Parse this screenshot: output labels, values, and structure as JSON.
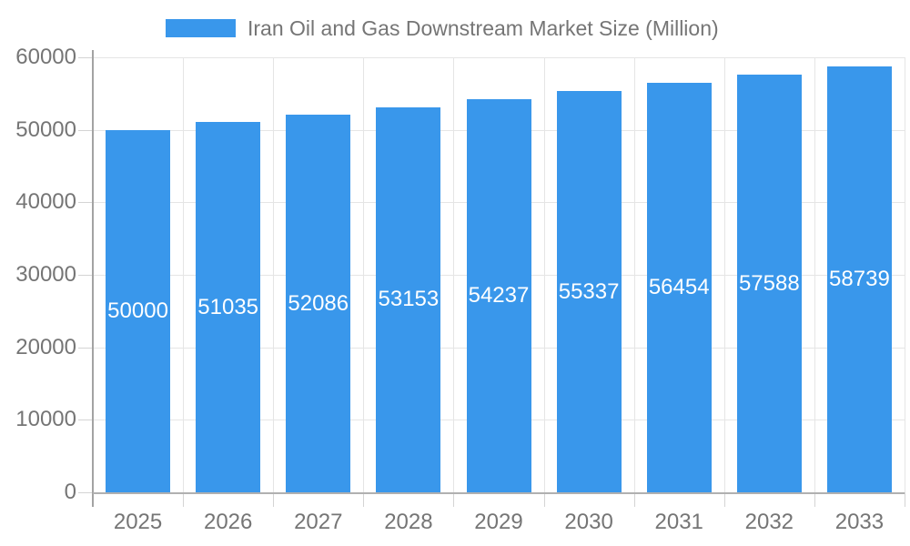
{
  "chart_data": {
    "type": "bar",
    "title": "Iran Oil and Gas Downstream Market Size (Million)",
    "legend": {
      "label": "Iran Oil and Gas Downstream Market Size (Million)",
      "position": "top-center"
    },
    "categories": [
      "2025",
      "2026",
      "2027",
      "2028",
      "2029",
      "2030",
      "2031",
      "2032",
      "2033"
    ],
    "series": [
      {
        "name": "Iran Oil and Gas Downstream Market Size (Million)",
        "values": [
          50000,
          51035,
          52086,
          53153,
          54237,
          55337,
          56454,
          57588,
          58739
        ],
        "bar_value_labels": [
          "50000",
          "51035",
          "52086",
          "53153",
          "54237",
          "55337",
          "56454",
          "57588",
          "58739"
        ]
      }
    ],
    "xlabel": "",
    "ylabel": "",
    "ylim": [
      0,
      60000
    ],
    "y_ticks": [
      0,
      10000,
      20000,
      30000,
      40000,
      50000,
      60000
    ],
    "y_tick_labels": [
      "0",
      "10000",
      "20000",
      "30000",
      "40000",
      "50000",
      "60000"
    ],
    "grid": true,
    "colors": {
      "bar": "#3997EB",
      "bar_label_text": "#FFFFFF",
      "axis_text": "#757575",
      "gridline": "#E5E5E5",
      "tick": "#D4D4D4",
      "y_axis_line": "#A3A3A3",
      "x_axis_line": "#B0B0B0",
      "background": "#FFFFFF"
    }
  }
}
